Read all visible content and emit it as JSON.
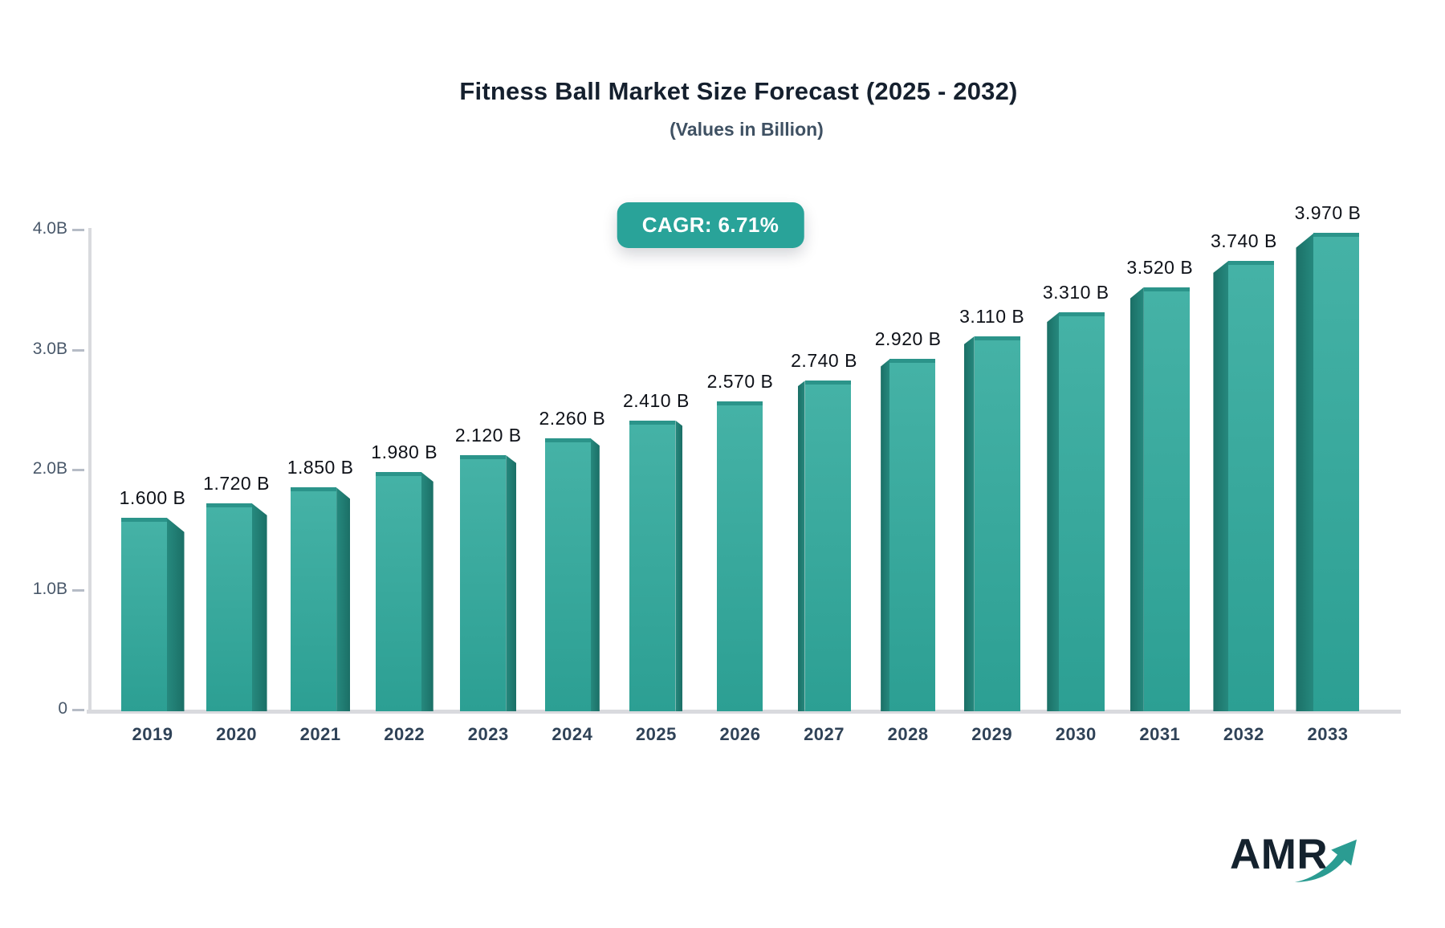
{
  "header": {
    "title": "Fitness Ball Market Size Forecast (2025 - 2032)",
    "subtitle": "(Values in Billion)",
    "badge": "CAGR: 6.71%"
  },
  "chart_data": {
    "type": "bar",
    "title": "Fitness Ball Market Size Forecast (2025 - 2032)",
    "subtitle": "(Values in Billion)",
    "annotation": "CAGR: 6.71%",
    "categories": [
      "2019",
      "2020",
      "2021",
      "2022",
      "2023",
      "2024",
      "2025",
      "2026",
      "2027",
      "2028",
      "2029",
      "2030",
      "2031",
      "2032",
      "2033"
    ],
    "values": [
      1.6,
      1.72,
      1.85,
      1.98,
      2.12,
      2.26,
      2.41,
      2.57,
      2.74,
      2.92,
      3.11,
      3.31,
      3.52,
      3.74,
      3.97
    ],
    "value_labels": [
      "1.600 B",
      "1.720 B",
      "1.850 B",
      "1.980 B",
      "2.120 B",
      "2.260 B",
      "2.410 B",
      "2.570 B",
      "2.740 B",
      "2.920 B",
      "3.110 B",
      "3.310 B",
      "3.520 B",
      "3.740 B",
      "3.970 B"
    ],
    "yticks": [
      {
        "label": "4.0B",
        "value": 4.0
      },
      {
        "label": "3.0B",
        "value": 3.0
      },
      {
        "label": "2.0B",
        "value": 2.0
      },
      {
        "label": "1.0B",
        "value": 1.0
      },
      {
        "label": "0",
        "value": 0.0
      }
    ],
    "ylim": [
      0,
      4.2
    ],
    "xlabel": "",
    "ylabel": "",
    "grid": false,
    "legend": "none",
    "colors": {
      "bar_front_top": "#45b2a6",
      "bar_front_bottom": "#2c9f93",
      "bar_top_edge": "#2b948a",
      "bar_side_light": "#26897e",
      "bar_side_dark": "#1b6f66",
      "axis": "#d9dade",
      "tick": "#b6bcc6",
      "badge_bg": "#29a399"
    }
  },
  "logo": {
    "text": "AMR"
  }
}
